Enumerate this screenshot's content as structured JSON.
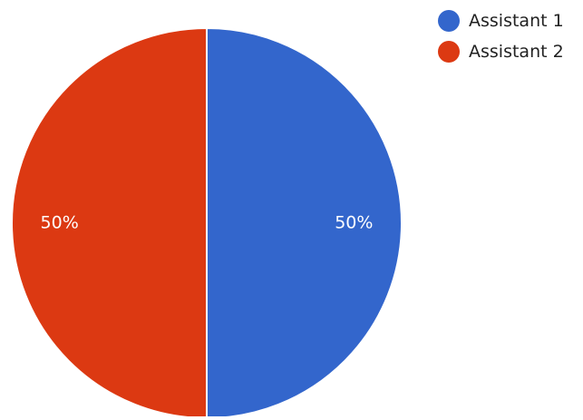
{
  "chart_data": {
    "type": "pie",
    "title": "",
    "categories": [
      "Assistant 1",
      "Assistant 2"
    ],
    "values": [
      50,
      50
    ],
    "data_labels": [
      "50%",
      "50%"
    ],
    "colors": [
      "#3366CC",
      "#DC3912"
    ],
    "legend": {
      "position": "top-right",
      "entries": [
        "Assistant 1",
        "Assistant 2"
      ]
    }
  }
}
